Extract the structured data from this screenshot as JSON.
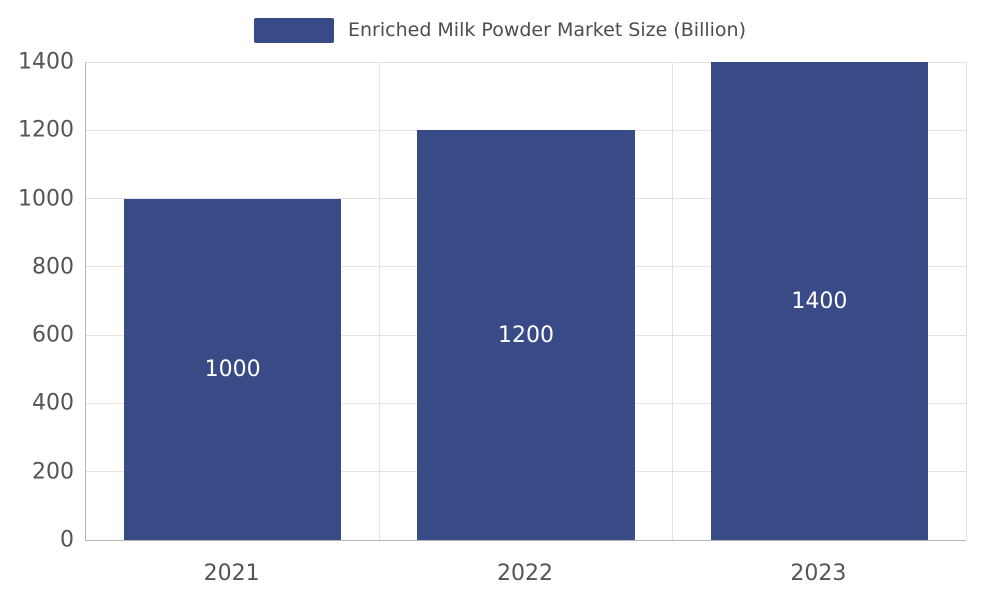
{
  "chart_data": {
    "type": "bar",
    "title": "Enriched Milk Powder Market Size (Billion)",
    "categories": [
      "2021",
      "2022",
      "2023"
    ],
    "values": [
      1000,
      1200,
      1400
    ],
    "xlabel": "",
    "ylabel": "",
    "ylim": [
      0,
      1400
    ],
    "yticks": [
      0,
      200,
      400,
      600,
      800,
      1000,
      1200,
      1400
    ],
    "grid": true,
    "legend_position": "top-center",
    "legend": [
      {
        "label": "Enriched Milk Powder Market Size (Billion)",
        "color": "#394B87"
      }
    ],
    "bar_color": "#394B87",
    "value_label_color": "#ffffff",
    "value_labels_inside_bars": true
  }
}
